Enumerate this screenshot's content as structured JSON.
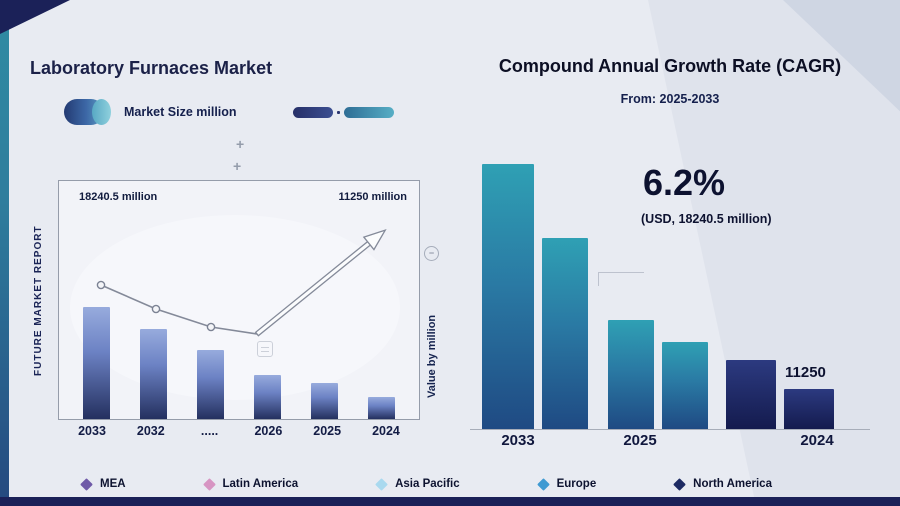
{
  "left_panel": {
    "title": "Laboratory Furnaces Market",
    "legend_label": "Market Size million",
    "side_label": "FUTURE MARKET REPORT",
    "chart_label_left": "18240.5 million",
    "chart_label_right": "11250 million"
  },
  "right_panel": {
    "title": "Compound Annual Growth Rate (CAGR)",
    "subtitle": "From: 2025-2033",
    "cagr_value": "6.2%",
    "cagr_note": "(USD, 18240.5 million)",
    "value_axis_label": "Value by million",
    "value_callout": "11250"
  },
  "decorations": {
    "plus": "+",
    "minus": "−"
  },
  "bottom_legend": [
    {
      "label": "MEA",
      "color": "#6f5aa8"
    },
    {
      "label": "Latin America",
      "color": "#d795c3"
    },
    {
      "label": "Asia Pacific",
      "color": "#a9d9ef"
    },
    {
      "label": "Europe",
      "color": "#3f9ad2"
    },
    {
      "label": "North America",
      "color": "#1d2a63"
    }
  ],
  "chart_data": [
    {
      "type": "bar",
      "title": "Laboratory Furnaces Market",
      "ylabel": "Market Size million",
      "categories": [
        "2033",
        "2032",
        ".....",
        "2026",
        "2025",
        "2024"
      ],
      "values_relative_pct": [
        100,
        80,
        62,
        39,
        32,
        20
      ],
      "labeled_points": {
        "2033": "18240.5 million",
        "2024": "11250 million"
      },
      "overlay": "declining marker line turning into a rising outlined arrow",
      "legend_position": "top-left"
    },
    {
      "type": "bar",
      "title": "Compound Annual Growth Rate (CAGR)",
      "subtitle": "From: 2025-2033",
      "cagr": "6.2%",
      "cagr_basis_usd_million": 18240.5,
      "ylabel": "Value by million",
      "categories": [
        "2033",
        "2025",
        "2024"
      ],
      "series": [
        {
          "name": "primary",
          "values_relative_pct": [
            100,
            41,
            26
          ]
        },
        {
          "name": "secondary",
          "values_relative_pct": [
            72,
            33,
            15
          ]
        }
      ],
      "group_styles": [
        "teal",
        "teal",
        "navy"
      ],
      "labeled_points": {
        "2024": 11250
      }
    }
  ]
}
